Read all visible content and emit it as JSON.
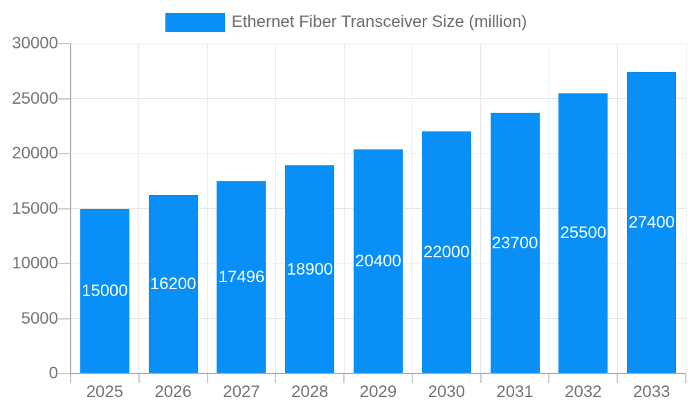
{
  "chart_data": {
    "type": "bar",
    "title": "Ethernet Fiber Transceiver Size (million)",
    "legend": [
      {
        "label": "Ethernet Fiber Transceiver Size (million)"
      }
    ],
    "legend_position": "top-center",
    "categories": [
      "2025",
      "2026",
      "2027",
      "2028",
      "2029",
      "2030",
      "2031",
      "2032",
      "2033"
    ],
    "values": [
      15000,
      16200,
      17496,
      18900,
      20400,
      22000,
      23700,
      25500,
      27400
    ],
    "value_labels": [
      "15000",
      "16200",
      "17496",
      "18900",
      "20400",
      "22000",
      "23700",
      "25500",
      "27400"
    ],
    "xlabel": "",
    "ylabel": "",
    "ylim": [
      0,
      30000
    ],
    "ytick_step": 5000,
    "yticks": [
      "0",
      "5000",
      "10000",
      "15000",
      "20000",
      "25000",
      "30000"
    ],
    "grid": "horizontal and vertical light-gray gridlines on",
    "colors": {
      "bar": "#0890F8",
      "value_label": "#ffffff",
      "axis_text": "#757575",
      "legend_text": "#6e6e6e",
      "grid": "#e6e6e6",
      "axis_line": "#b0b0b0",
      "tick": "#cccccc",
      "background": "#ffffff"
    }
  }
}
